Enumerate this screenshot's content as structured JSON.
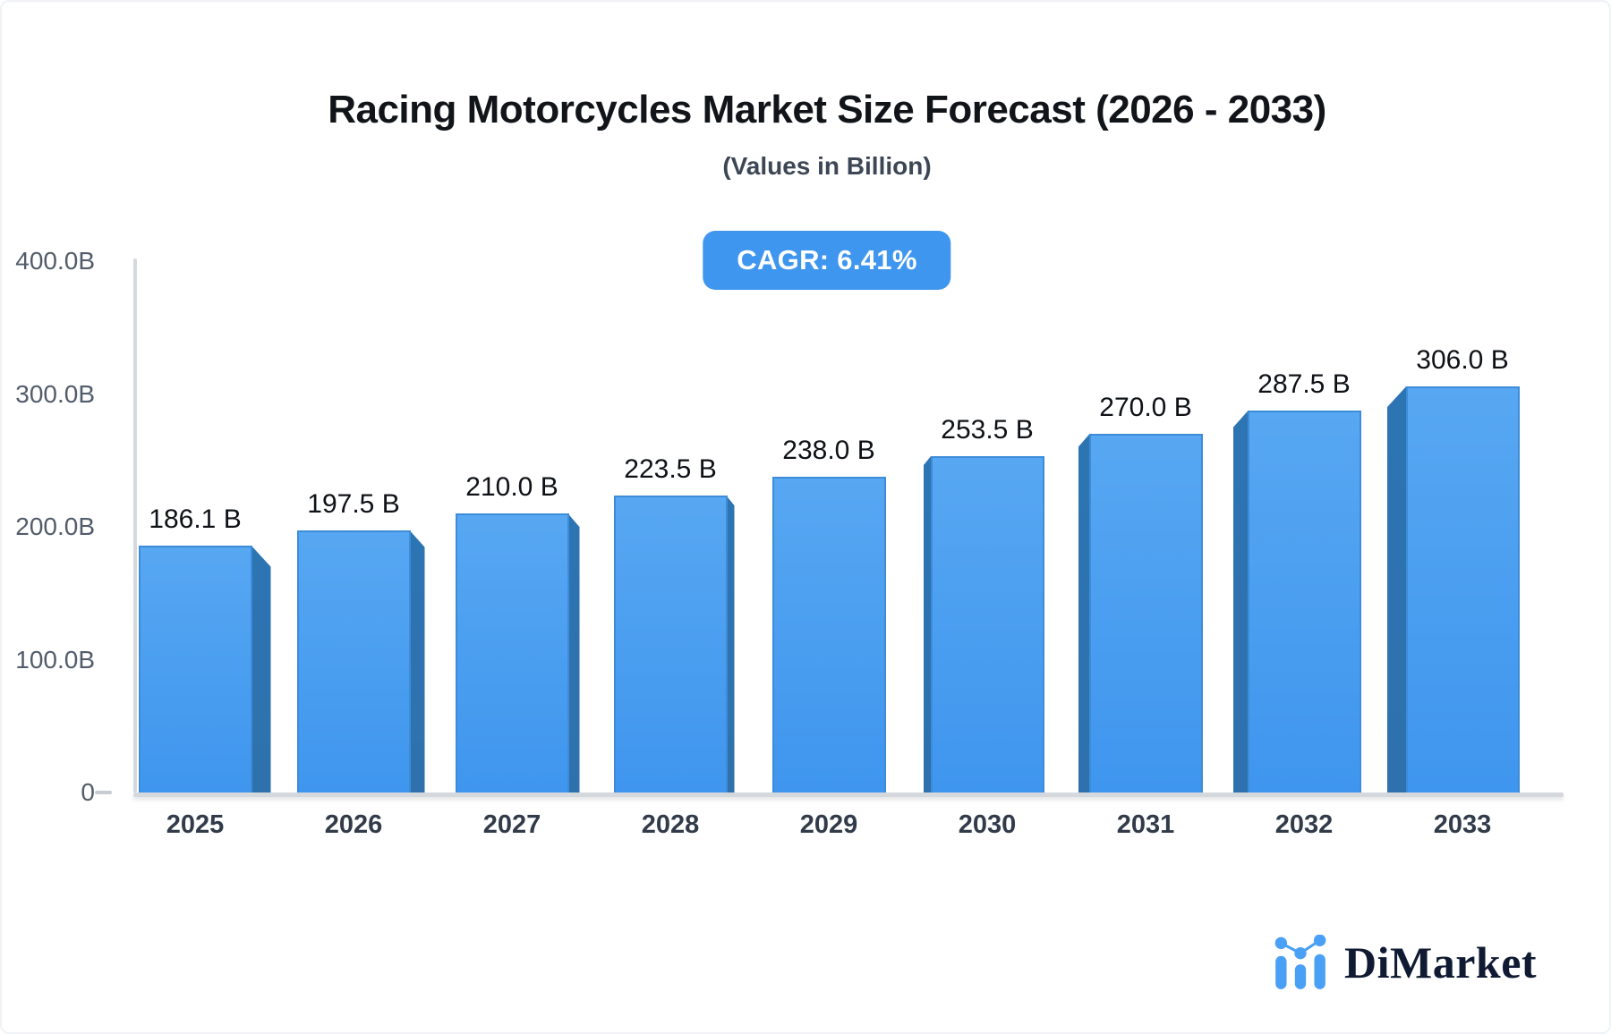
{
  "header": {
    "title": "Racing Motorcycles Market Size Forecast (2026 - 2033)",
    "subtitle": "(Values in Billion)",
    "cagr_badge": "CAGR: 6.41%"
  },
  "chart_data": {
    "type": "bar",
    "title": "Racing Motorcycles Market Size Forecast (2026 - 2033)",
    "subtitle": "(Values in Billion)",
    "categories": [
      "2025",
      "2026",
      "2027",
      "2028",
      "2029",
      "2030",
      "2031",
      "2032",
      "2033"
    ],
    "values": [
      186.1,
      197.5,
      210.0,
      223.5,
      238.0,
      253.5,
      270.0,
      287.5,
      306.0
    ],
    "value_labels": [
      "186.1 B",
      "197.5 B",
      "210.0 B",
      "223.5 B",
      "238.0 B",
      "253.5 B",
      "270.0 B",
      "287.5 B",
      "306.0 B"
    ],
    "ylim": [
      0,
      400
    ],
    "yticks": [
      {
        "value": 400,
        "label": "400.0B"
      },
      {
        "value": 300,
        "label": "300.0B"
      },
      {
        "value": 200,
        "label": "200.0B"
      },
      {
        "value": 100,
        "label": "100.0B"
      },
      {
        "value": 0,
        "label": "0"
      }
    ],
    "annotation": "CAGR: 6.41%",
    "legend": null,
    "grid": false,
    "bar_style": "3d-beveled",
    "colors": {
      "bar_face_top": "#57a7f2",
      "bar_face_bottom": "#3f96ee",
      "bar_side": "#2e71ac",
      "bar_edge": "#3d8cd9",
      "accent": "#3f96ee",
      "axis": "#d5d9de"
    }
  },
  "branding": {
    "logo_text": "DiMarket",
    "logo_color": "#4aa0f5",
    "text_color": "#101b33"
  }
}
